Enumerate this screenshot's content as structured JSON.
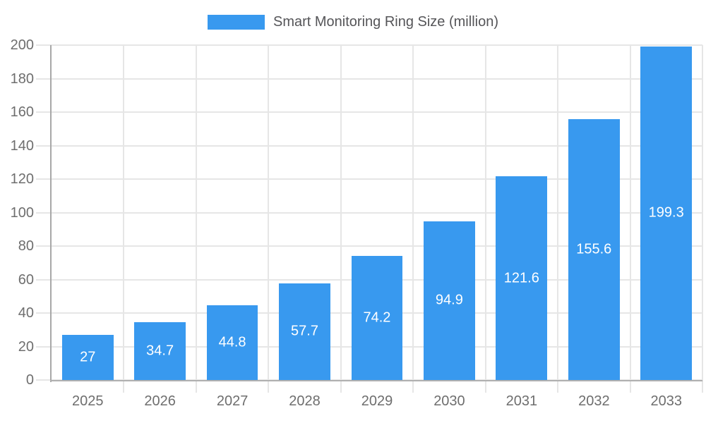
{
  "legend": {
    "label": "Smart Monitoring Ring Size (million)"
  },
  "chart_data": {
    "type": "bar",
    "title": "Smart Monitoring Ring Size (million)",
    "categories": [
      "2025",
      "2026",
      "2027",
      "2028",
      "2029",
      "2030",
      "2031",
      "2032",
      "2033"
    ],
    "values": [
      27,
      34.7,
      44.8,
      57.7,
      74.2,
      94.9,
      121.6,
      155.6,
      199.3
    ],
    "value_labels": [
      "27",
      "34.7",
      "44.8",
      "57.7",
      "74.2",
      "94.9",
      "121.6",
      "155.6",
      "199.3"
    ],
    "series": [
      {
        "name": "Smart Monitoring Ring Size (million)",
        "values": [
          27,
          34.7,
          44.8,
          57.7,
          74.2,
          94.9,
          121.6,
          155.6,
          199.3
        ]
      }
    ],
    "xlabel": "",
    "ylabel": "",
    "ylim": [
      0,
      200
    ],
    "yticks": [
      0,
      20,
      40,
      60,
      80,
      100,
      120,
      140,
      160,
      180,
      200
    ],
    "grid": true,
    "legend_position": "top",
    "series_color": "#3899EF",
    "value_label_color": "#ffffff"
  },
  "colors": {
    "bar": "#3899EF",
    "gridline": "#e6e6e6",
    "axis_line": "#a8a8a8",
    "tick_text": "#6e6e6e",
    "legend_text": "#555558"
  }
}
